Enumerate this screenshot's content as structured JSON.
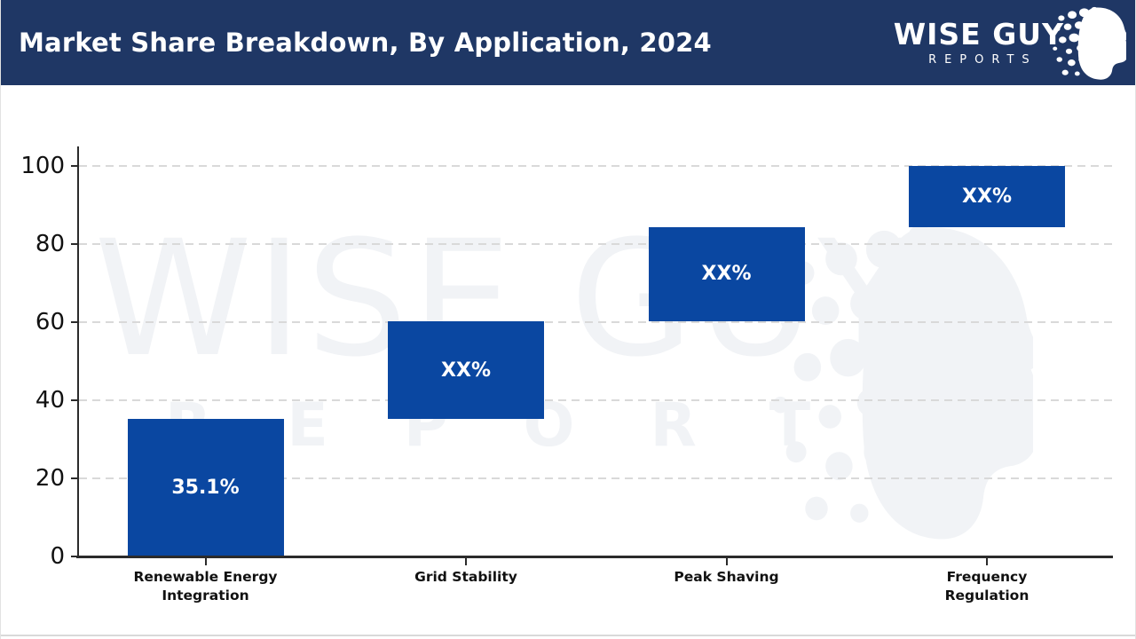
{
  "header": {
    "title": "Market Share Breakdown, By Application, 2024",
    "logo": {
      "wordmark": "WISE GUY",
      "subtitle": "REPORTS"
    },
    "bg_color": "#1f3765"
  },
  "watermark": {
    "line1": "WISE GUY",
    "line2": "REPORTS"
  },
  "chart_data": {
    "type": "bar",
    "subtype": "waterfall",
    "title": "Market Share Breakdown, By Application, 2024",
    "categories": [
      [
        "Renewable Energy",
        "Integration"
      ],
      [
        "Grid Stability"
      ],
      [
        "Peak Shaving"
      ],
      [
        "Frequency",
        "Regulation"
      ]
    ],
    "series": [
      {
        "name": "Market Share (%)",
        "segments": [
          {
            "label": "35.1%",
            "from": 0,
            "to": 35.1
          },
          {
            "label": "XX%",
            "from": 35.1,
            "to": 60.2
          },
          {
            "label": "XX%",
            "from": 60.2,
            "to": 84.2
          },
          {
            "label": "XX%",
            "from": 84.2,
            "to": 100
          }
        ]
      }
    ],
    "ylim": [
      0,
      100
    ],
    "yticks": [
      0,
      20,
      40,
      60,
      80,
      100
    ],
    "grid": "horizontal-dashed",
    "legend": "none",
    "bar_color": "#0a47a1",
    "bar_label_color": "#ffffff",
    "axis_color": "#2b2b2b"
  }
}
